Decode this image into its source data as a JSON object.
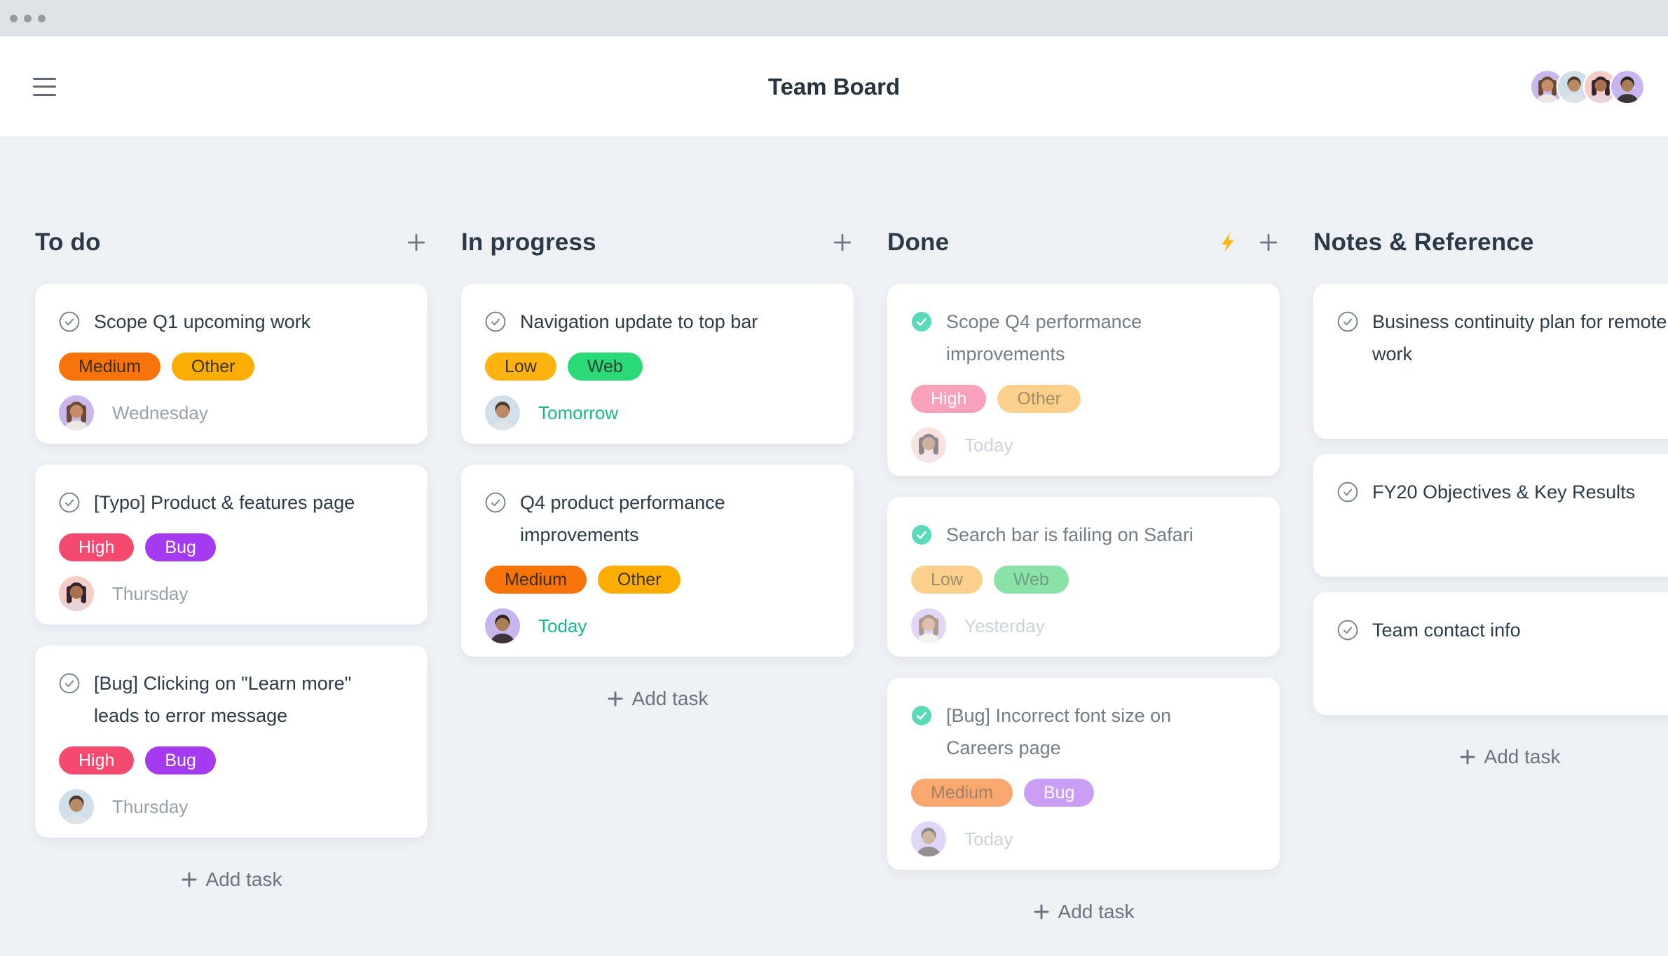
{
  "window": {
    "dots": [
      "#989ca1",
      "#989ca1",
      "#989ca1"
    ]
  },
  "header": {
    "title": "Team Board",
    "avatars": [
      "p1",
      "p3",
      "p2",
      "p4"
    ]
  },
  "people": {
    "p1": {
      "bg": "#c9b7ec",
      "skin": "#c78d68",
      "hair": "#6a4a33",
      "shirt": "#ece7e2",
      "long": true
    },
    "p2": {
      "bg": "#f3cdc8",
      "skin": "#a9714e",
      "hair": "#352530",
      "shirt": "#e8d3d8",
      "long": true
    },
    "p3": {
      "bg": "#d2dee8",
      "skin": "#b98a64",
      "hair": "#4a3b33",
      "shirt": "#dde3e7",
      "long": false
    },
    "p4": {
      "bg": "#c7b6ee",
      "skin": "#a97e57",
      "hair": "#2a2220",
      "shirt": "#3b3438",
      "long": false
    }
  },
  "icons": {
    "bolt_color": "#fbb915",
    "plus_color": "#6b7681",
    "check_open_color": "#77838e",
    "check_done_color": "#59dab8"
  },
  "board": {
    "columns": [
      {
        "title": "To do",
        "bolt": false,
        "notes_style": false,
        "add_label": "Add task",
        "cards": [
          {
            "title": "Scope Q1 upcoming work",
            "done": false,
            "tags": [
              {
                "label": "Medium",
                "bg": "#f8740a",
                "fg": "#3e2d15"
              },
              {
                "label": "Other",
                "bg": "#fcad01",
                "fg": "#3e3315"
              }
            ],
            "assignee": "p1",
            "due": "Wednesday",
            "due_color": "#98a1aa"
          },
          {
            "title": "[Typo] Product & features page",
            "done": false,
            "tags": [
              {
                "label": "High",
                "bg": "#f54a70",
                "fg": "#ffffff"
              },
              {
                "label": "Bug",
                "bg": "#a43bf0",
                "fg": "#ffffff"
              }
            ],
            "assignee": "p2",
            "due": "Thursday",
            "due_color": "#98a1aa"
          },
          {
            "title": "[Bug] Clicking on \"Learn more\" leads to error message",
            "done": false,
            "tags": [
              {
                "label": "High",
                "bg": "#f54a70",
                "fg": "#ffffff"
              },
              {
                "label": "Bug",
                "bg": "#a43bf0",
                "fg": "#ffffff"
              }
            ],
            "assignee": "p3",
            "due": "Thursday",
            "due_color": "#98a1aa"
          }
        ]
      },
      {
        "title": "In progress",
        "bolt": false,
        "notes_style": false,
        "add_label": "Add task",
        "cards": [
          {
            "title": "Navigation update to top bar",
            "done": false,
            "tags": [
              {
                "label": "Low",
                "bg": "#ffb310",
                "fg": "#3e3315"
              },
              {
                "label": "Web",
                "bg": "#2bd977",
                "fg": "#254531"
              }
            ],
            "assignee": "p3",
            "due": "Tomorrow",
            "due_color": "#17b78e"
          },
          {
            "title": "Q4 product performance improvements",
            "done": false,
            "tags": [
              {
                "label": "Medium",
                "bg": "#f8740a",
                "fg": "#3e2d15"
              },
              {
                "label": "Other",
                "bg": "#fcad01",
                "fg": "#3e3315"
              }
            ],
            "assignee": "p4",
            "due": "Today",
            "due_color": "#17b78e"
          }
        ]
      },
      {
        "title": "Done",
        "bolt": true,
        "notes_style": false,
        "add_label": "Add task",
        "cards": [
          {
            "title": "Scope Q4 performance improvements",
            "done": true,
            "tags": [
              {
                "label": "High",
                "bg": "#f9a0ba",
                "fg": "#ffffff"
              },
              {
                "label": "Other",
                "bg": "#fbcf8c",
                "fg": "#a18d67"
              }
            ],
            "assignee": "p2",
            "due": "Today",
            "due_color": "#ccd3d9"
          },
          {
            "title": "Search bar is failing on Safari",
            "done": true,
            "tags": [
              {
                "label": "Low",
                "bg": "#fbcf8c",
                "fg": "#a18d67"
              },
              {
                "label": "Web",
                "bg": "#8be2a8",
                "fg": "#6d9f80"
              }
            ],
            "assignee": "p1",
            "due": "Yesterday",
            "due_color": "#ccd3d9"
          },
          {
            "title": "[Bug] Incorrect font size on Careers page",
            "done": true,
            "tags": [
              {
                "label": "Medium",
                "bg": "#f9a76f",
                "fg": "#a18167"
              },
              {
                "label": "Bug",
                "bg": "#ca9ef5",
                "fg": "#ffffff"
              }
            ],
            "assignee": "p4",
            "due": "Today",
            "due_color": "#ccd3d9"
          }
        ]
      },
      {
        "title": "Notes & Reference",
        "bolt": false,
        "notes_style": true,
        "add_label": "Add task",
        "cards": [
          {
            "title": "Business continuity plan for remote work",
            "done": false,
            "note": true,
            "tags": []
          },
          {
            "title": "FY20 Objectives & Key Results",
            "done": false,
            "note": true,
            "tags": []
          },
          {
            "title": "Team contact info",
            "done": false,
            "note": true,
            "tags": []
          }
        ]
      }
    ]
  }
}
